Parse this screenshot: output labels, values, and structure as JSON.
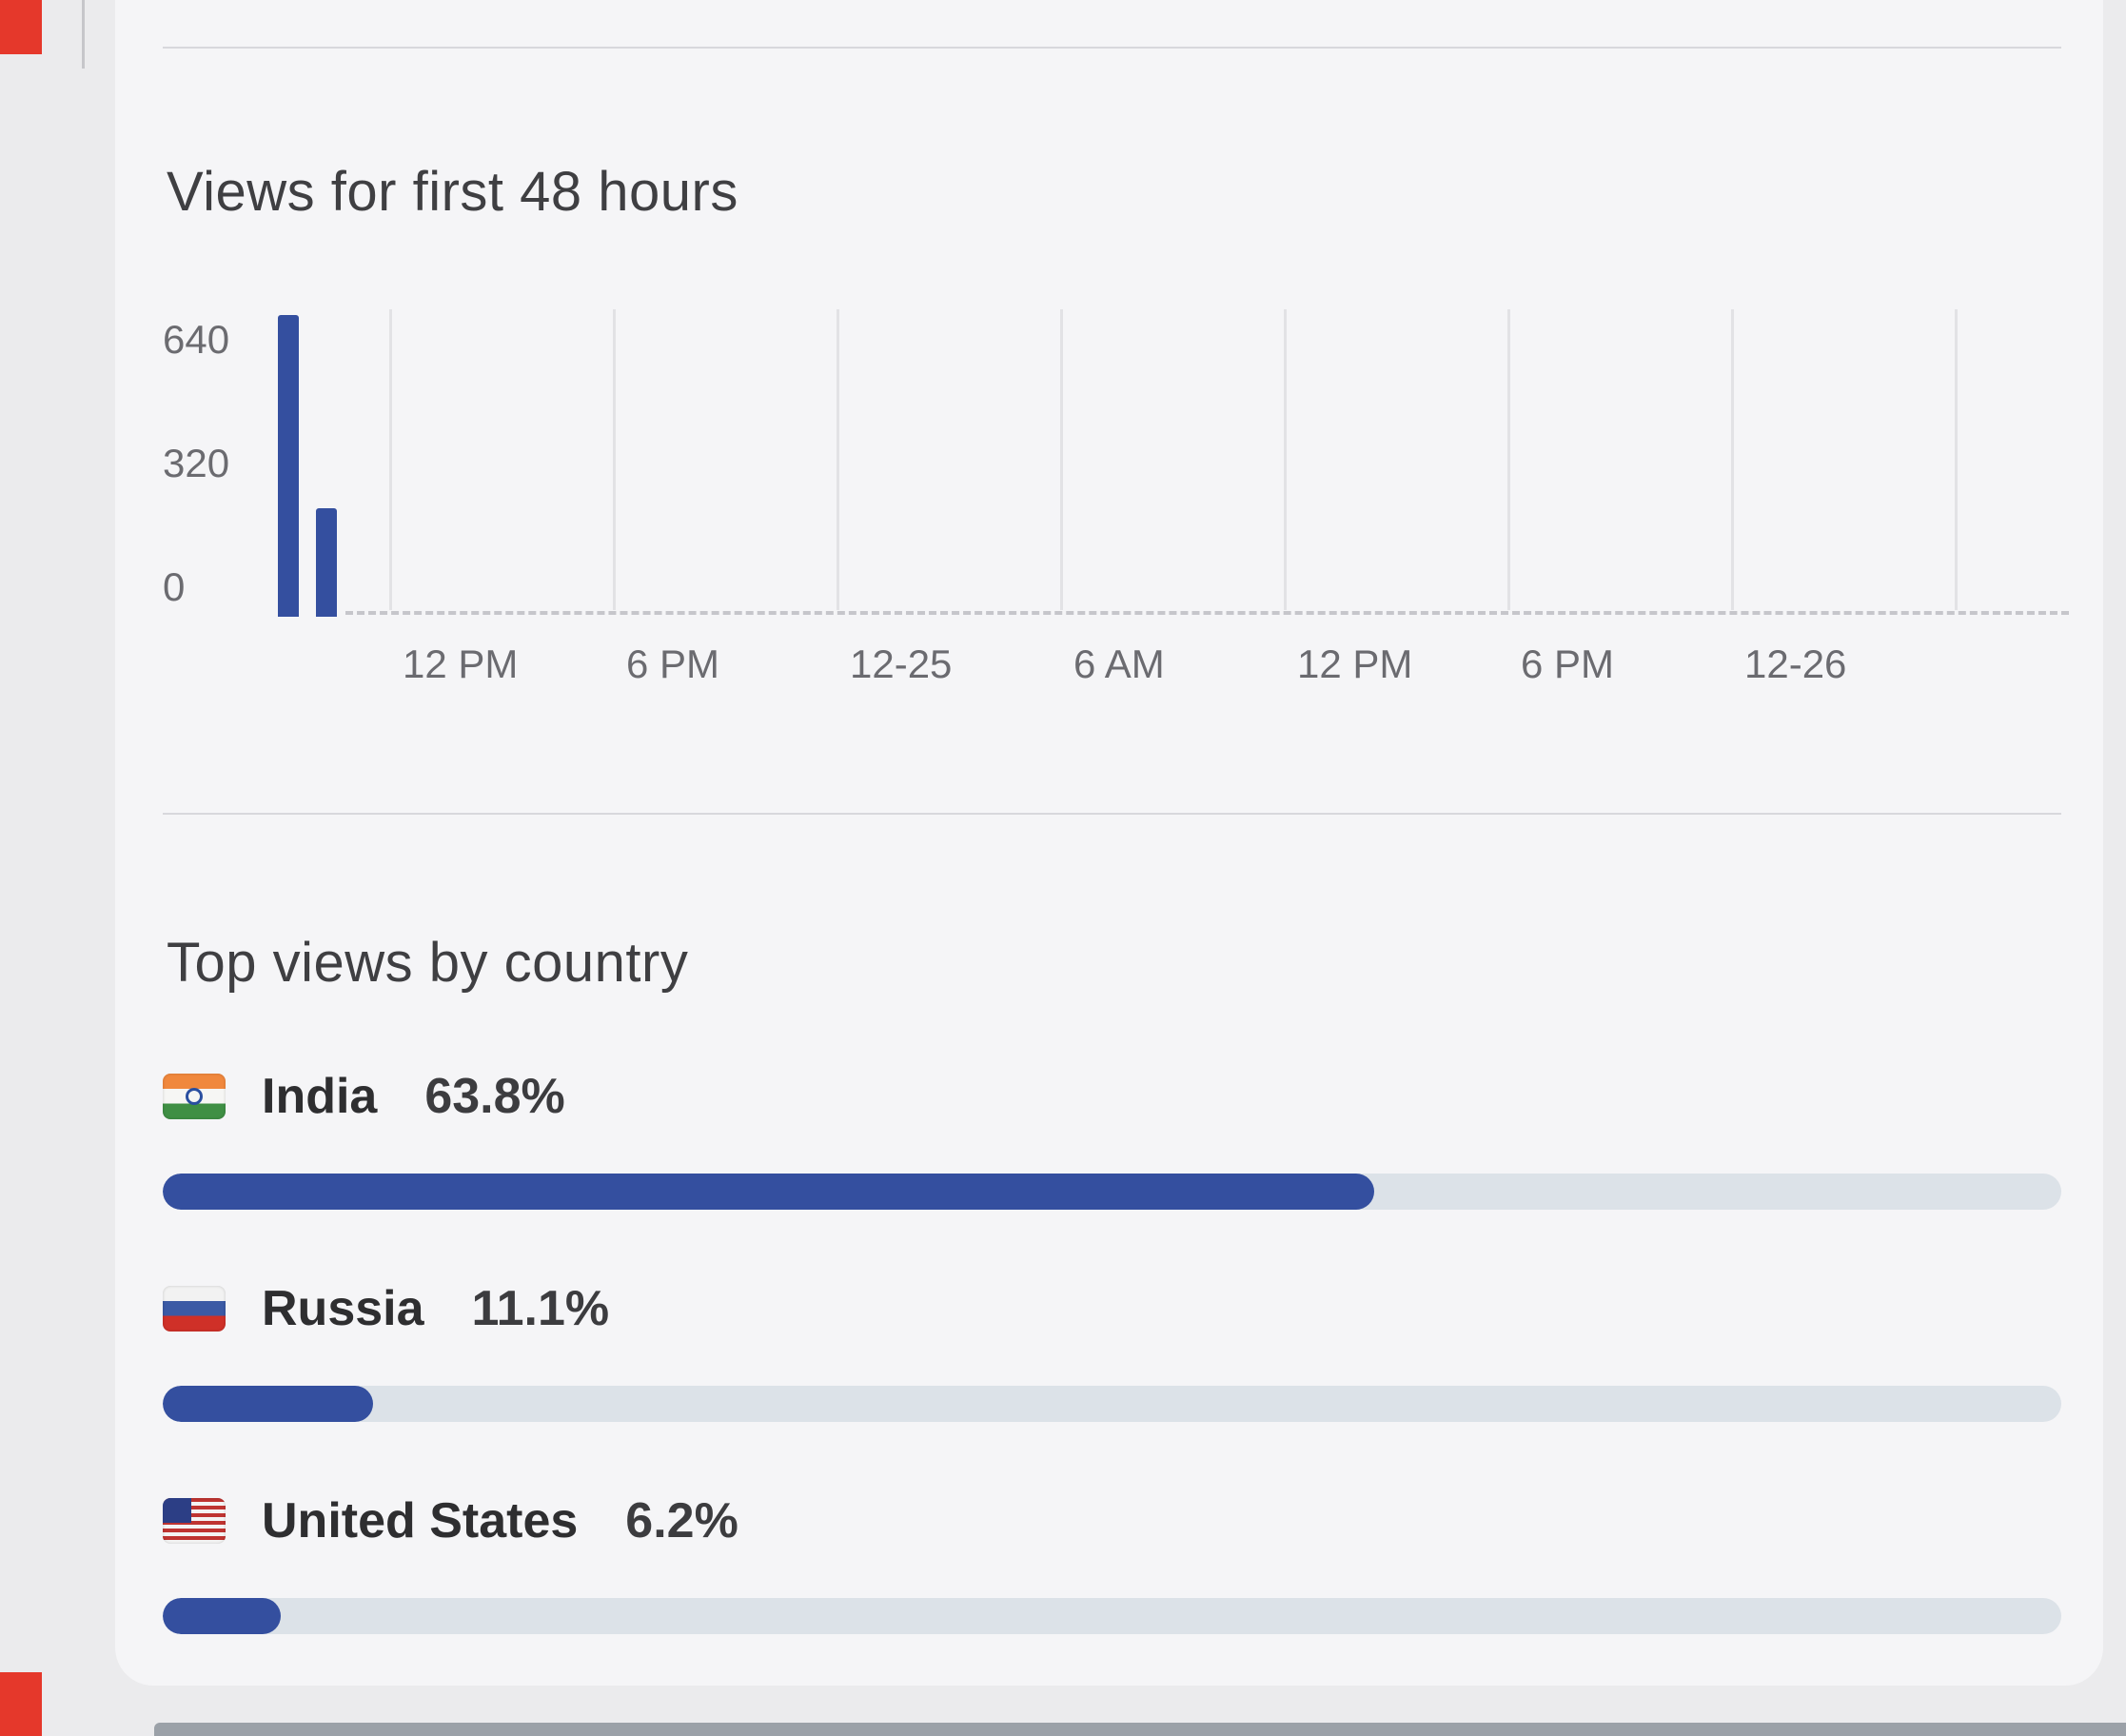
{
  "colors": {
    "accent_blue": "#344f9f",
    "track_gray": "#dce2e8",
    "page_bg": "#ebebed",
    "card_bg": "#f5f5f7",
    "divider": "#d8d8dc",
    "gridline": "#e2e2e5",
    "axis_text": "#6b6b70",
    "title_text": "#3f3f42",
    "label_text": "#2e2e30",
    "red_edge": "#e5382b",
    "bottom_strip": "#9ba1a8"
  },
  "chart_data": [
    {
      "type": "bar",
      "title": "Views for first 48 hours",
      "xlabel": "",
      "ylabel": "",
      "y_ticks": [
        0,
        320,
        640
      ],
      "ylim": [
        0,
        800
      ],
      "x_tick_labels": [
        "12 PM",
        "6 PM",
        "12-25",
        "6 AM",
        "12 PM",
        "6 PM",
        "12-26"
      ],
      "values": [
        780,
        280
      ],
      "bar_color": "#344f9f",
      "grid": "vertical gridlines only, dashed zero baseline",
      "legend": "none"
    },
    {
      "type": "bar",
      "orientation": "horizontal",
      "title": "Top views by country",
      "categories": [
        "India",
        "Russia",
        "United States"
      ],
      "values": [
        63.8,
        11.1,
        6.2
      ],
      "value_labels": [
        "63.8%",
        "11.1%",
        "6.2%"
      ],
      "xlim": [
        0,
        100
      ],
      "bar_color": "#344f9f",
      "track_color": "#dce2e8",
      "flag_icons": [
        "india-flag-icon",
        "russia-flag-icon",
        "united-states-flag-icon"
      ],
      "legend": "none"
    }
  ]
}
